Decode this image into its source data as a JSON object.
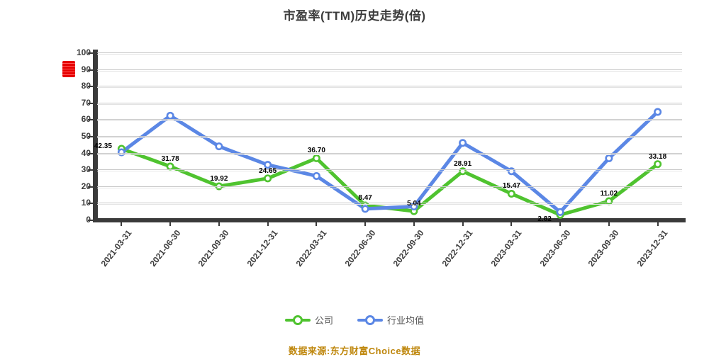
{
  "chart": {
    "title": "市盈率(TTM)历史走势(倍)"
  },
  "chart_data": {
    "type": "line",
    "title": "市盈率(TTM)历史走势(倍)",
    "categories": [
      "2021-03-31",
      "2021-06-30",
      "2021-09-30",
      "2021-12-31",
      "2022-03-31",
      "2022-06-30",
      "2022-09-30",
      "2022-12-31",
      "2023-03-31",
      "2023-06-30",
      "2023-09-30",
      "2023-12-31"
    ],
    "series": [
      {
        "name": "公司",
        "color": "#4fc32f",
        "values": [
          42.35,
          31.78,
          19.92,
          24.65,
          36.7,
          8.47,
          5.04,
          28.91,
          15.47,
          2.82,
          11.02,
          33.18
        ],
        "show_labels": true
      },
      {
        "name": "行业均值",
        "color": "#5b87e5",
        "values": [
          40.28,
          62.15,
          43.81,
          32.76,
          26.08,
          6.4,
          7.82,
          45.88,
          28.92,
          4.49,
          36.68,
          64.41
        ],
        "show_labels": false
      }
    ],
    "xlabel": "",
    "ylabel": "",
    "ylim": [
      0,
      100
    ],
    "yticks": [
      0,
      10,
      20,
      30,
      40,
      50,
      60,
      70,
      80,
      90,
      100
    ],
    "grid": true,
    "legend_position": "bottom",
    "marker_style": "white-filled-circle"
  },
  "legend": {
    "items": [
      {
        "label": "公司",
        "color": "#4fc32f"
      },
      {
        "label": "行业均值",
        "color": "#5b87e5"
      }
    ]
  },
  "watermark": {
    "text": "数据来源:东方财富Choice数据",
    "color": "#be860b"
  },
  "colors": {
    "grid": "#c9c9c9",
    "axis": "#3a3a3a",
    "stamp_red": "#e60000",
    "title_text": "#3c3c3c"
  }
}
